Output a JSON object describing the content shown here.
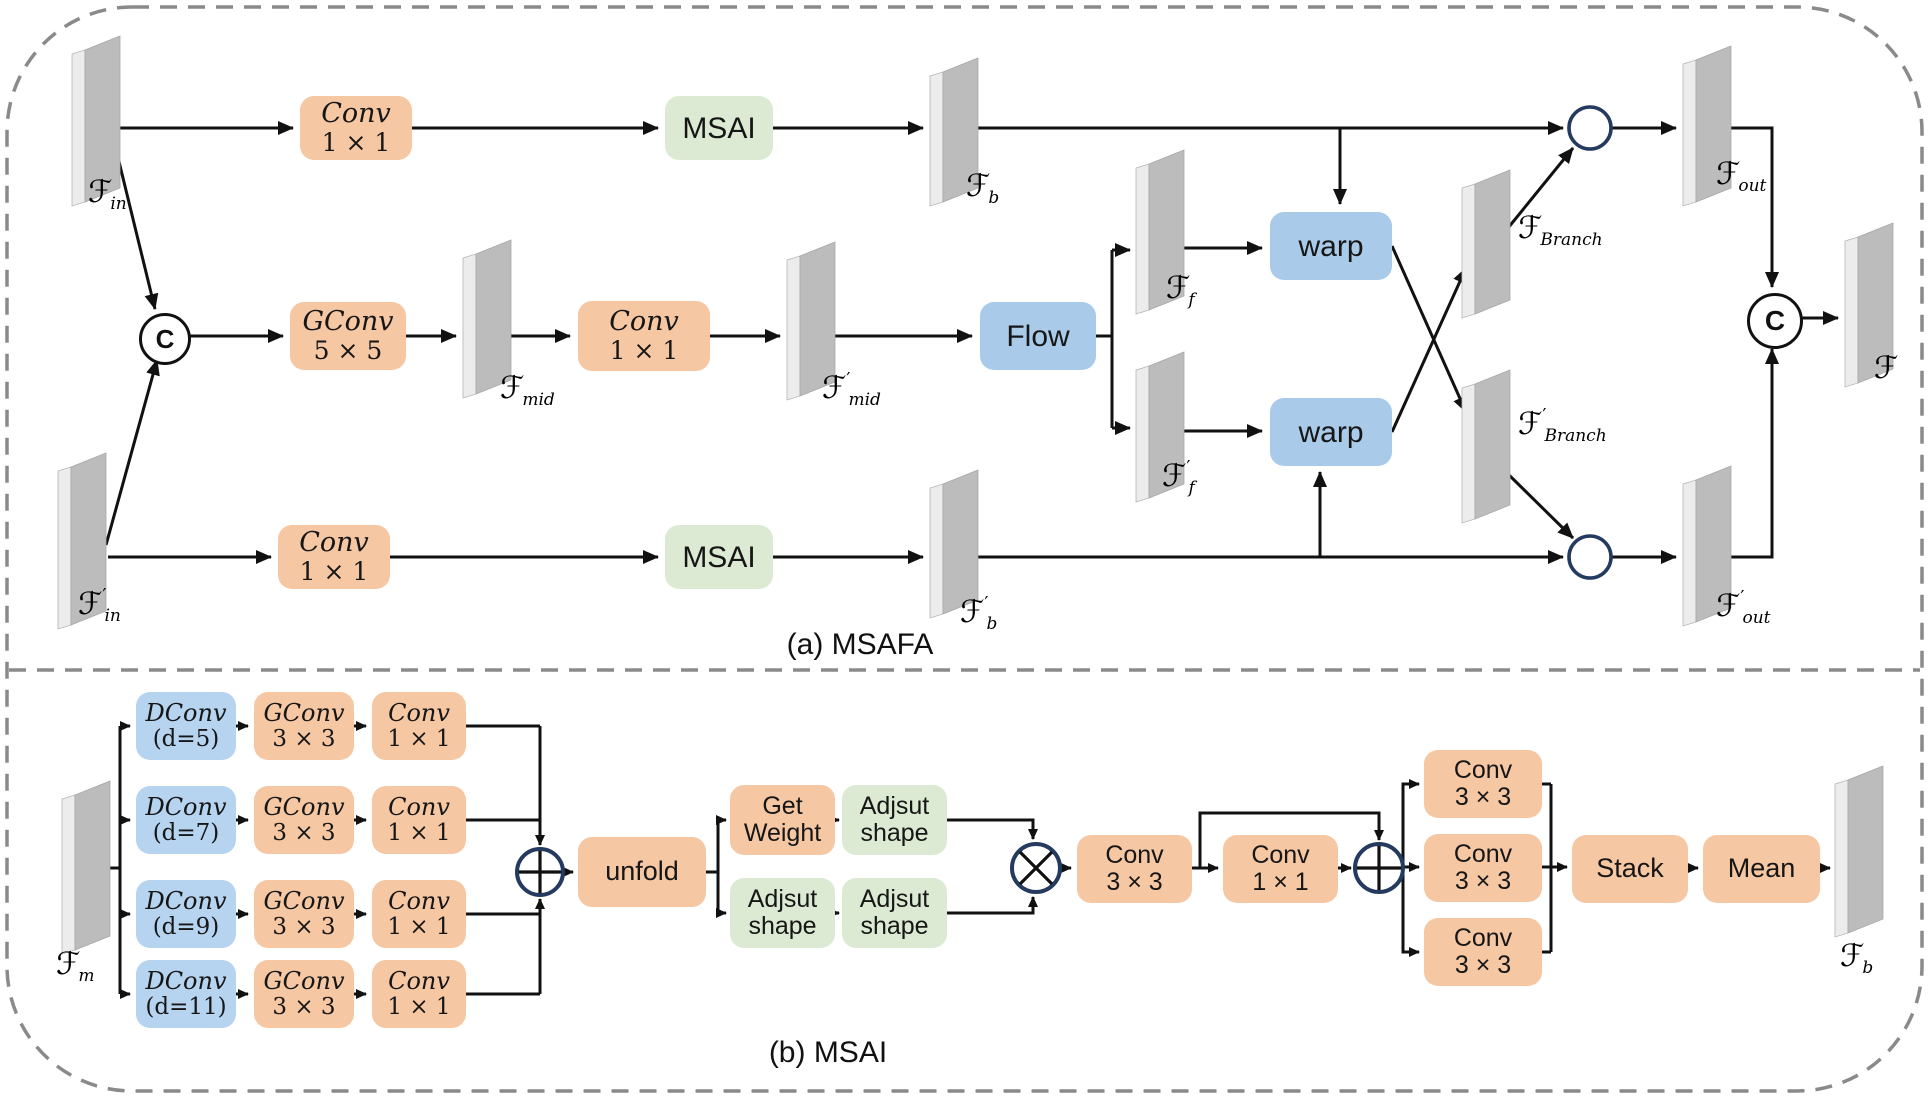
{
  "colors": {
    "block_orange": "#f6c7a3",
    "block_blue": "#a9cbe9",
    "block_blue_light": "#b6d4f0",
    "block_green": "#dcead3",
    "circle_navy": "#243a5e",
    "line_black": "#111111",
    "border_gray": "#8a8a8a",
    "slab_front": "#bcbcbc",
    "slab_side": "#ececec"
  },
  "panel_a": {
    "caption": "(a) MSAFA",
    "blocks": {
      "conv_top": {
        "line1": "Conv",
        "line2": "1 × 1"
      },
      "msai_top": {
        "label": "MSAI"
      },
      "gconv": {
        "line1": "GConv",
        "line2": "5 × 5"
      },
      "conv_mid": {
        "line1": "Conv",
        "line2": "1 × 1"
      },
      "flow": {
        "label": "Flow"
      },
      "warp_top": {
        "label": "warp"
      },
      "warp_bottom": {
        "label": "warp"
      },
      "conv_bottom": {
        "line1": "Conv",
        "line2": "1 × 1"
      },
      "msai_bottom": {
        "label": "MSAI"
      },
      "concat_left": "C",
      "concat_right": "C"
    },
    "labels": {
      "f_in": {
        "base": "ℱ",
        "prime": "",
        "sub": "in"
      },
      "f_in_prime": {
        "base": "ℱ",
        "prime": "′",
        "sub": "in"
      },
      "f_b": {
        "base": "ℱ",
        "prime": "",
        "sub": "b"
      },
      "f_b_prime": {
        "base": "ℱ",
        "prime": "′",
        "sub": "b"
      },
      "f_mid": {
        "base": "ℱ",
        "prime": "",
        "sub": "mid"
      },
      "f_mid_prime": {
        "base": "ℱ",
        "prime": "′",
        "sub": "mid"
      },
      "f_f": {
        "base": "ℱ",
        "prime": "",
        "sub": "f"
      },
      "f_f_prime": {
        "base": "ℱ",
        "prime": "′",
        "sub": "f"
      },
      "f_branch": {
        "base": "ℱ",
        "prime": "",
        "sub": "Branch"
      },
      "f_branch_prime": {
        "base": "ℱ",
        "prime": "′",
        "sub": "Branch"
      },
      "f_out": {
        "base": "ℱ",
        "prime": "",
        "sub": "out"
      },
      "f_out_prime": {
        "base": "ℱ",
        "prime": "′",
        "sub": "out"
      },
      "f": {
        "base": "ℱ",
        "prime": "",
        "sub": ""
      }
    }
  },
  "panel_b": {
    "caption": "(b) MSAI",
    "rows": [
      {
        "dconv_line1": "DConv",
        "dconv_line2": "(d=5)",
        "gconv_line1": "GConv",
        "gconv_line2": "3 × 3",
        "conv_line1": "Conv",
        "conv_line2": "1 × 1"
      },
      {
        "dconv_line1": "DConv",
        "dconv_line2": "(d=7)",
        "gconv_line1": "GConv",
        "gconv_line2": "3 × 3",
        "conv_line1": "Conv",
        "conv_line2": "1 × 1"
      },
      {
        "dconv_line1": "DConv",
        "dconv_line2": "(d=9)",
        "gconv_line1": "GConv",
        "gconv_line2": "3 × 3",
        "conv_line1": "Conv",
        "conv_line2": "1 × 1"
      },
      {
        "dconv_line1": "DConv",
        "dconv_line2": "(d=11)",
        "gconv_line1": "GConv",
        "gconv_line2": "3 × 3",
        "conv_line1": "Conv",
        "conv_line2": "1 × 1"
      }
    ],
    "blocks": {
      "unfold": {
        "label": "unfold"
      },
      "get_weight": {
        "line1": "Get",
        "line2": "Weight"
      },
      "adjust_top": {
        "line1": "Adjsut",
        "line2": "shape"
      },
      "adjust_bottom_left": {
        "line1": "Adjsut",
        "line2": "shape"
      },
      "adjust_bottom_right": {
        "line1": "Adjsut",
        "line2": "shape"
      },
      "conv33": {
        "line1": "Conv",
        "line2": "3 × 3"
      },
      "conv11": {
        "line1": "Conv",
        "line2": "1 × 1"
      },
      "conv_stack_1": {
        "line1": "Conv",
        "line2": "3 × 3"
      },
      "conv_stack_2": {
        "line1": "Conv",
        "line2": "3 × 3"
      },
      "conv_stack_3": {
        "line1": "Conv",
        "line2": "3 × 3"
      },
      "stack": {
        "label": "Stack"
      },
      "mean": {
        "label": "Mean"
      }
    },
    "labels": {
      "f_m": {
        "base": "ℱ",
        "prime": "",
        "sub": "m"
      },
      "f_b": {
        "base": "ℱ",
        "prime": "",
        "sub": "b"
      }
    }
  }
}
